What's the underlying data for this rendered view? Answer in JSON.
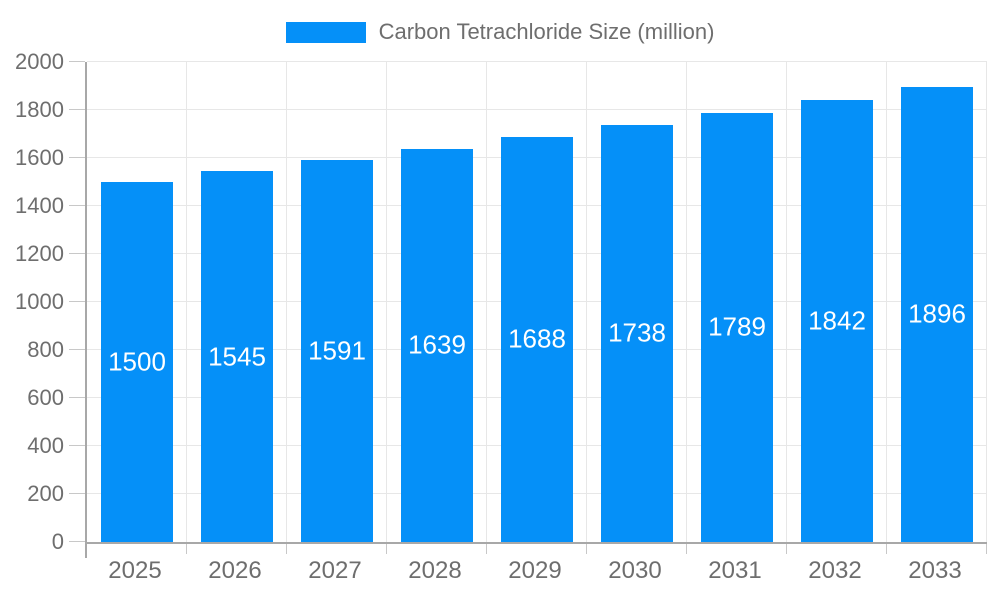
{
  "legend": {
    "label": "Carbon Tetrachloride Size (million)"
  },
  "chart_data": {
    "type": "bar",
    "title": "Carbon Tetrachloride Size (million)",
    "categories": [
      "2025",
      "2026",
      "2027",
      "2028",
      "2029",
      "2030",
      "2031",
      "2032",
      "2033"
    ],
    "values": [
      1500,
      1545,
      1591,
      1639,
      1688,
      1738,
      1789,
      1842,
      1896
    ],
    "series_name": "Carbon Tetrachloride Size (million)",
    "xlabel": "",
    "ylabel": "",
    "ylim": [
      0,
      2000
    ],
    "ytick_step": 200,
    "grid": true,
    "legend_position": "top-center",
    "value_label_position": "inside-middle",
    "colors": {
      "bar": "#0590f8",
      "bar_label": "#ffffff",
      "axis_text": "#6e6e6e",
      "grid": "#e7e7e7",
      "axis_line": "#a8a8a8",
      "tick": "#c8c8c8",
      "background": "#ffffff"
    }
  }
}
